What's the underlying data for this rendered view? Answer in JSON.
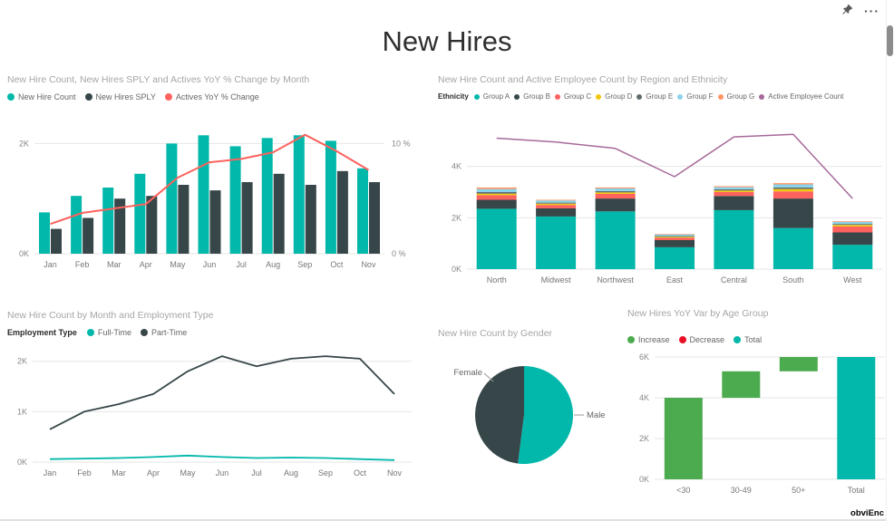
{
  "page": {
    "title": "New Hires",
    "watermark": "obviEnc",
    "icons": {
      "pin": "pin-icon",
      "more_options": "ellipsis-icon"
    }
  },
  "colors": {
    "teal": "#01b8aa",
    "dark_slate": "#374649",
    "coral_red": "#fd625e",
    "yellow": "#f2c80f",
    "slate_gray": "#5f6b6d",
    "light_blue": "#8ad4eb",
    "orange": "#fe9666",
    "purple": "#a66999",
    "increase_green": "#4cab4f",
    "decrease_red": "#e81123",
    "chart_title_gray": "#a6a6a6",
    "axis_gray": "#777777"
  },
  "chart_data": [
    {
      "id": "new-hires-by-month",
      "type": "combo",
      "title": "New Hire Count, New Hires SPLY and Actives YoY % Change by Month",
      "categories": [
        "Jan",
        "Feb",
        "Mar",
        "Apr",
        "May",
        "Jun",
        "Jul",
        "Aug",
        "Sep",
        "Oct",
        "Nov"
      ],
      "bar_series": [
        {
          "name": "New Hire Count",
          "color": "#01b8aa",
          "values": [
            750,
            1050,
            1200,
            1450,
            2000,
            2150,
            1950,
            2100,
            2150,
            2050,
            1550
          ]
        },
        {
          "name": "New Hires SPLY",
          "color": "#374649",
          "values": [
            450,
            650,
            1000,
            1050,
            1250,
            1150,
            1300,
            1450,
            1250,
            1500,
            1300
          ]
        }
      ],
      "line_series": {
        "name": "Actives YoY % Change",
        "color": "#fd625e",
        "values": [
          2.7,
          3.7,
          4.1,
          4.5,
          6.9,
          8.3,
          8.6,
          9.2,
          10.8,
          9.3,
          7.6
        ]
      },
      "left_axis": {
        "max": 2500,
        "ticks": [
          {
            "label": "2K",
            "value": 2000
          },
          {
            "label": "0K",
            "value": 0
          }
        ]
      },
      "right_axis": {
        "max": 12.5,
        "ticks": [
          {
            "label": "10 %",
            "value": 10
          },
          {
            "label": "0 %",
            "value": 0
          }
        ]
      }
    },
    {
      "id": "by-region-and-ethnicity",
      "type": "stacked",
      "title": "New Hire Count and Active Employee Count by Region and Ethnicity",
      "legend_label": "Ethnicity",
      "categories": [
        "North",
        "Midwest",
        "Northwest",
        "East",
        "Central",
        "South",
        "West"
      ],
      "series": [
        {
          "name": "Group A",
          "color": "#01b8aa",
          "values": [
            2350,
            2050,
            2250,
            850,
            2300,
            1600,
            950
          ]
        },
        {
          "name": "Group B",
          "color": "#374649",
          "values": [
            350,
            320,
            500,
            280,
            550,
            1150,
            480
          ]
        },
        {
          "name": "Group C",
          "color": "#fd625e",
          "values": [
            180,
            130,
            180,
            90,
            150,
            280,
            230
          ]
        },
        {
          "name": "Group D",
          "color": "#f2c80f",
          "values": [
            60,
            50,
            60,
            40,
            60,
            90,
            60
          ]
        },
        {
          "name": "Group E",
          "color": "#5f6b6d",
          "values": [
            60,
            40,
            50,
            30,
            50,
            60,
            40
          ]
        },
        {
          "name": "Group F",
          "color": "#8ad4eb",
          "values": [
            120,
            80,
            100,
            60,
            80,
            120,
            80
          ]
        },
        {
          "name": "Group G",
          "color": "#fe9666",
          "values": [
            60,
            30,
            40,
            20,
            40,
            50,
            30
          ]
        }
      ],
      "line_series": {
        "name": "Active Employee Count",
        "color": "#a66999",
        "values": [
          5100,
          4950,
          4700,
          3600,
          5150,
          5250,
          2750
        ]
      },
      "y_axis": {
        "max": 6000,
        "ticks": [
          {
            "label": "4K",
            "value": 4000
          },
          {
            "label": "2K",
            "value": 2000
          },
          {
            "label": "0K",
            "value": 0
          }
        ]
      }
    },
    {
      "id": "by-month-and-employment-type",
      "type": "lines",
      "title": "New Hire Count by Month and Employment Type",
      "legend_label": "Employment Type",
      "categories": [
        "Jan",
        "Feb",
        "Mar",
        "Apr",
        "May",
        "Jun",
        "Jul",
        "Aug",
        "Sep",
        "Oct",
        "Nov"
      ],
      "series": [
        {
          "name": "Full-Time",
          "color": "#01b8aa",
          "values": [
            60,
            70,
            80,
            100,
            130,
            100,
            80,
            90,
            80,
            60,
            40
          ]
        },
        {
          "name": "Part-Time",
          "color": "#374649",
          "values": [
            650,
            1000,
            1150,
            1350,
            1800,
            2100,
            1900,
            2050,
            2100,
            2050,
            1350
          ]
        }
      ],
      "y_axis": {
        "max": 2300,
        "ticks": [
          {
            "label": "2K",
            "value": 2000
          },
          {
            "label": "1K",
            "value": 1000
          },
          {
            "label": "0K",
            "value": 0
          }
        ]
      }
    },
    {
      "id": "by-gender",
      "type": "pie",
      "title": "New Hire Count by Gender",
      "slices": [
        {
          "label": "Female",
          "color": "#374649",
          "value": 48
        },
        {
          "label": "Male",
          "color": "#01b8aa",
          "value": 52
        }
      ]
    },
    {
      "id": "yoy-var-by-age-group",
      "type": "waterfall",
      "title": "New Hires YoY Var by Age Group",
      "legend": [
        {
          "name": "Increase",
          "color": "#4cab4f"
        },
        {
          "name": "Decrease",
          "color": "#e81123"
        },
        {
          "name": "Total",
          "color": "#01b8aa"
        }
      ],
      "categories": [
        "<30",
        "30-49",
        "50+",
        "Total"
      ],
      "steps": [
        {
          "category": "<30",
          "start": 0,
          "end": 4000,
          "kind": "increase"
        },
        {
          "category": "30-49",
          "start": 4000,
          "end": 5300,
          "kind": "increase"
        },
        {
          "category": "50+",
          "start": 5300,
          "end": 6000,
          "kind": "increase"
        },
        {
          "category": "Total",
          "start": 0,
          "end": 6000,
          "kind": "total"
        }
      ],
      "y_axis": {
        "max": 6000,
        "ticks": [
          {
            "label": "6K",
            "value": 6000
          },
          {
            "label": "4K",
            "value": 4000
          },
          {
            "label": "2K",
            "value": 2000
          },
          {
            "label": "0K",
            "value": 0
          }
        ]
      }
    }
  ]
}
